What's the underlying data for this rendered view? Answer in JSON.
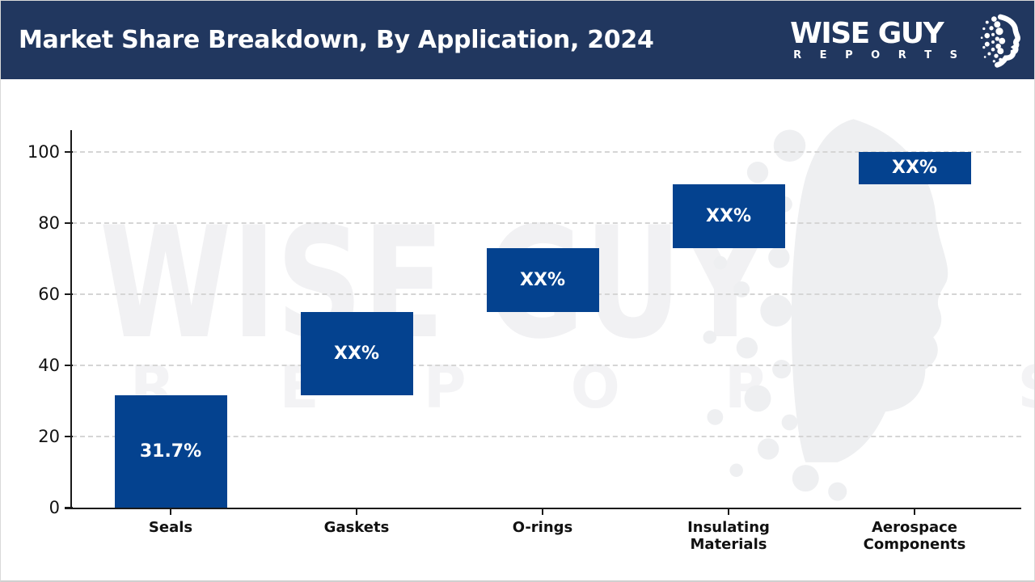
{
  "page": {
    "background": "#ffffff",
    "frame_border": "#d9d9d9"
  },
  "header": {
    "bg": "#21375f",
    "title": "Market Share Breakdown, By Application, 2024",
    "logo": {
      "wordmark": "WISE GUY",
      "subtext": "R E P O R T S",
      "face_icon": "dotted-profile-face"
    }
  },
  "watermark": {
    "line1": "WISE GUY",
    "line2": "R E P O R T S"
  },
  "chart_data": {
    "type": "bar",
    "subtype": "waterfall",
    "title": "Market Share Breakdown, By Application, 2024",
    "categories": [
      "Seals",
      "Gaskets",
      "O-rings",
      "Insulating\nMaterials",
      "Aerospace\nComponents"
    ],
    "bars": [
      {
        "category": "Seals",
        "start": 0,
        "end": 31.7,
        "label": "31.7%"
      },
      {
        "category": "Gaskets",
        "start": 31.7,
        "end": 55,
        "label": "XX%"
      },
      {
        "category": "O-rings",
        "start": 55,
        "end": 73,
        "label": "XX%"
      },
      {
        "category": "Insulating Materials",
        "start": 73,
        "end": 91,
        "label": "XX%"
      },
      {
        "category": "Aerospace Components",
        "start": 91,
        "end": 100,
        "label": "XX%"
      }
    ],
    "ylim": [
      0,
      100
    ],
    "yticks": [
      0,
      20,
      40,
      60,
      80,
      100
    ],
    "xlabel": "",
    "ylabel": "",
    "bar_color": "#04428f",
    "bar_label_color": "#ffffff",
    "grid": "horizontal-dashed",
    "gridline_color": "#d5d5d5",
    "axis_color": "#1a1a1a",
    "legend": "none"
  }
}
